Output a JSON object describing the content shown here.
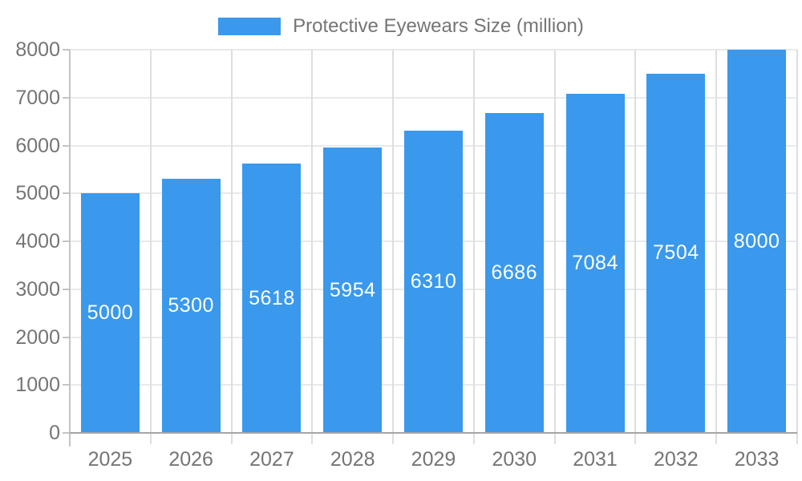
{
  "chart_data": {
    "type": "bar",
    "title": "Protective Eyewears Size (million)",
    "legend_label": "Protective Eyewears Size (million)",
    "legend_position": "top-center",
    "categories": [
      "2025",
      "2026",
      "2027",
      "2028",
      "2029",
      "2030",
      "2031",
      "2032",
      "2033"
    ],
    "series": [
      {
        "name": "Protective Eyewears Size (million)",
        "values": [
          5000,
          5300,
          5618,
          5954,
          6310,
          6686,
          7084,
          7504,
          8000
        ]
      }
    ],
    "value_labels": [
      "5000",
      "5300",
      "5618",
      "5954",
      "6310",
      "6686",
      "7084",
      "7504",
      "8000"
    ],
    "xlabel": "",
    "ylabel": "",
    "ylim": [
      0,
      8000
    ],
    "yticks": [
      0,
      1000,
      2000,
      3000,
      4000,
      5000,
      6000,
      7000,
      8000
    ],
    "grid": true
  },
  "colors": {
    "bar": "#3A99EC",
    "axis_text": "#757575",
    "value_text": "#ffffff",
    "h_gridline": "#e9e9e9",
    "v_gridline": "#dedede",
    "tick": "#c4c4c4",
    "baseline": "#a6a6a6",
    "background": "#ffffff"
  }
}
